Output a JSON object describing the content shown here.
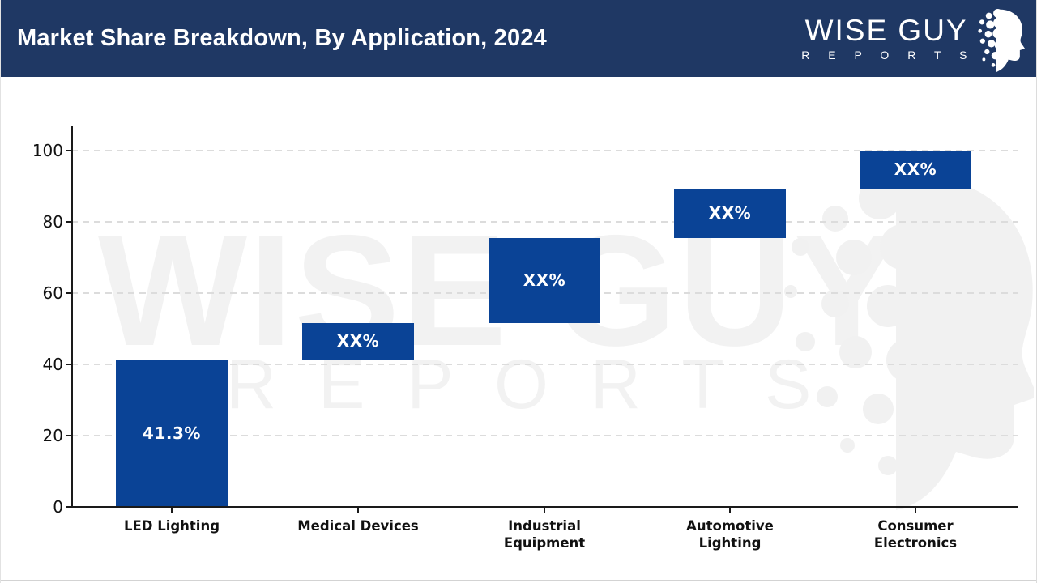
{
  "header": {
    "title": "Market Share Breakdown, By Application, 2024",
    "logo": {
      "line1": "WISE GUY",
      "line2": "R E P O R T S"
    }
  },
  "watermark": {
    "line1": "WISE GUY",
    "line2": "R E P O R T S"
  },
  "colors": {
    "header_bg": "#1f3864",
    "bar": "#0a4396",
    "grid": "#dcdcdc",
    "axis": "#1a1a1a",
    "watermark": "#f2f2f2",
    "bar_label_text": "#ffffff"
  },
  "chart_data": {
    "type": "bar",
    "subtype": "waterfall",
    "title": "Market Share Breakdown, By Application, 2024",
    "categories": [
      "LED Lighting",
      "Medical Devices",
      "Industrial\nEquipment",
      "Automotive\nLighting",
      "Consumer\nElectronics"
    ],
    "segments": [
      {
        "category": "LED Lighting",
        "start": 0,
        "end": 41.3,
        "value": 41.3,
        "display_label": "41.3%"
      },
      {
        "category": "Medical Devices",
        "start": 41.3,
        "end": 51.7,
        "value": 10.4,
        "display_label": "XX%"
      },
      {
        "category": "Industrial Equipment",
        "start": 51.7,
        "end": 75.5,
        "value": 23.8,
        "display_label": "XX%"
      },
      {
        "category": "Automotive Lighting",
        "start": 75.5,
        "end": 89.4,
        "value": 13.9,
        "display_label": "XX%"
      },
      {
        "category": "Consumer Electronics",
        "start": 89.4,
        "end": 100,
        "value": 10.6,
        "display_label": "XX%"
      }
    ],
    "yticks": [
      0,
      20,
      40,
      60,
      80,
      100
    ],
    "ylim": [
      0,
      105
    ],
    "xlabel": "",
    "ylabel": "",
    "grid": "horizontal-dashed",
    "legend": "none",
    "values_hidden_as": "XX%"
  }
}
